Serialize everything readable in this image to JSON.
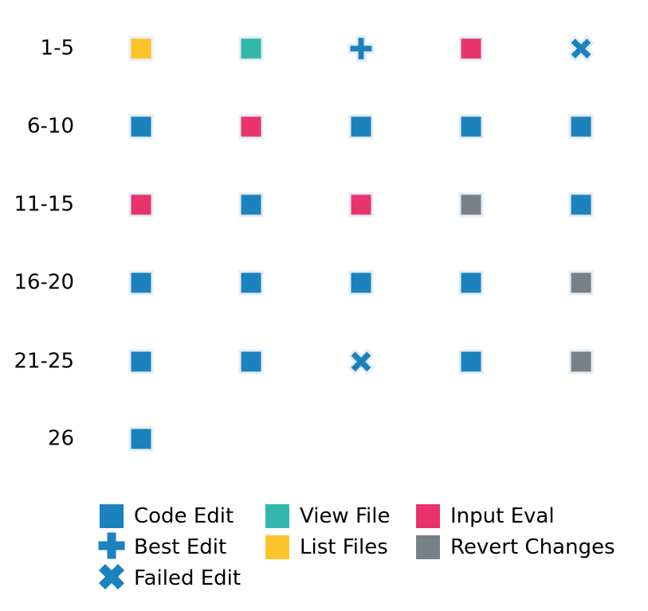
{
  "colors": {
    "background": "#ffffff",
    "text": "#000000",
    "marker_halo": "#e4eef6",
    "blue": "#1b82be",
    "teal": "#33b7ab",
    "pink": "#e8336d",
    "yellow": "#fdc32b",
    "gray": "#7a8087"
  },
  "chart_data": {
    "type": "scatter",
    "description": "Grid of tool-usage markers per turn range, no axes or gridlines, legend bottom with 3 columns",
    "row_labels": [
      "1-5",
      "6-10",
      "11-15",
      "16-20",
      "21-25",
      "26"
    ],
    "grid": [
      [
        "list_files",
        "view_file",
        "best_edit",
        "input_eval",
        "failed_edit"
      ],
      [
        "code_edit",
        "input_eval",
        "code_edit",
        "code_edit",
        "code_edit"
      ],
      [
        "input_eval",
        "code_edit",
        "input_eval",
        "revert_changes",
        "code_edit"
      ],
      [
        "code_edit",
        "code_edit",
        "code_edit",
        "code_edit",
        "revert_changes"
      ],
      [
        "code_edit",
        "code_edit",
        "failed_edit",
        "code_edit",
        "revert_changes"
      ],
      [
        "code_edit"
      ]
    ],
    "markers": {
      "code_edit": {
        "label": "Code Edit",
        "shape": "square",
        "color": "#1b82be"
      },
      "view_file": {
        "label": "View File",
        "shape": "square",
        "color": "#33b7ab"
      },
      "input_eval": {
        "label": "Input Eval",
        "shape": "square",
        "color": "#e8336d"
      },
      "best_edit": {
        "label": "Best Edit",
        "shape": "plus",
        "color": "#1b82be"
      },
      "list_files": {
        "label": "List Files",
        "shape": "square",
        "color": "#fdc32b"
      },
      "revert_changes": {
        "label": "Revert Changes",
        "shape": "square",
        "color": "#7a8087"
      },
      "failed_edit": {
        "label": "Failed Edit",
        "shape": "x",
        "color": "#1b82be"
      }
    },
    "legend_columns": [
      [
        "code_edit",
        "best_edit",
        "failed_edit"
      ],
      [
        "view_file",
        "list_files"
      ],
      [
        "input_eval",
        "revert_changes"
      ]
    ],
    "legend_position": "bottom"
  }
}
